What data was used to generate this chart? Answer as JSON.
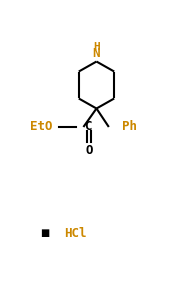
{
  "bg_color": "#ffffff",
  "line_color": "#000000",
  "label_N": "N",
  "label_H": "H",
  "label_EtO": "EtO",
  "label_C": "C",
  "label_O": "O",
  "label_Ph": "Ph",
  "label_dot": "■",
  "label_HCl": "HCl",
  "figsize": [
    1.71,
    3.01
  ],
  "dpi": 100,
  "N_color": "#cc8800",
  "H_color": "#cc8800",
  "HCl_color": "#cc8800"
}
